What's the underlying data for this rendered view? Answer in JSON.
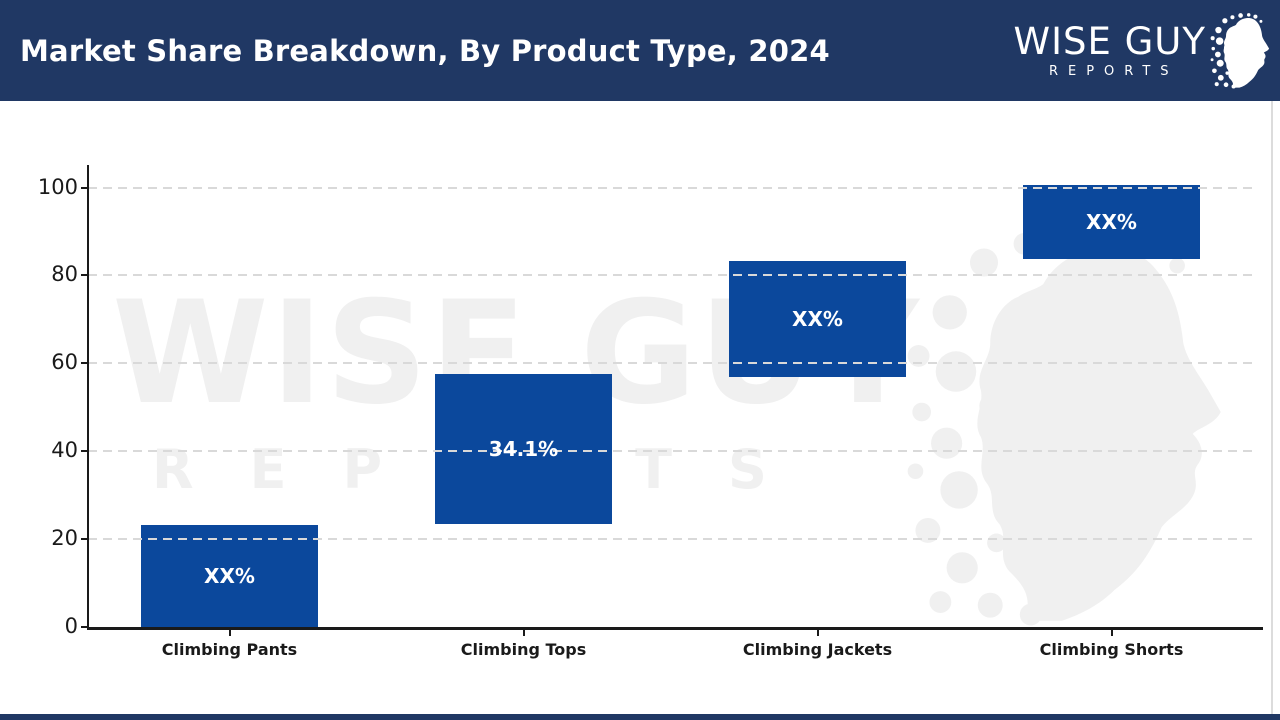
{
  "header": {
    "title": "Market Share Breakdown, By Product Type, 2024",
    "logo": {
      "name_line": "WISE GUY",
      "sub_line": "REPORTS"
    }
  },
  "watermark": {
    "name_line": "WISE GUY",
    "sub_line": "REPORTS"
  },
  "chart_data": {
    "type": "bar",
    "variant": "waterfall",
    "title": "Market Share Breakdown, By Product Type, 2024",
    "categories": [
      "Climbing Pants",
      "Climbing Tops",
      "Climbing Jackets",
      "Climbing Shorts"
    ],
    "segments": [
      {
        "category": "Climbing Pants",
        "from": 0,
        "to": 23.2,
        "label": "XX%"
      },
      {
        "category": "Climbing Tops",
        "from": 23.4,
        "to": 57.5,
        "label": "34.1%",
        "value": 34.1
      },
      {
        "category": "Climbing Jackets",
        "from": 56.9,
        "to": 83.3,
        "label": "XX%"
      },
      {
        "category": "Climbing Shorts",
        "from": 83.7,
        "to": 100.5,
        "label": "XX%"
      }
    ],
    "yticks": [
      0,
      20,
      40,
      60,
      80,
      100
    ],
    "ylim": [
      0,
      105
    ],
    "xlabel": "",
    "ylabel": "",
    "grid": "horizontal-dashed",
    "legend": "none",
    "bar_color": "#0b489c",
    "bar_label_color": "#ffffff",
    "axis_color": "#1a1a1a",
    "gridline_color": "#d9d9d9"
  },
  "colors": {
    "header_bg": "#203864",
    "footer_bg": "#203864",
    "watermark": "#f0f0f0",
    "background": "#ffffff"
  }
}
